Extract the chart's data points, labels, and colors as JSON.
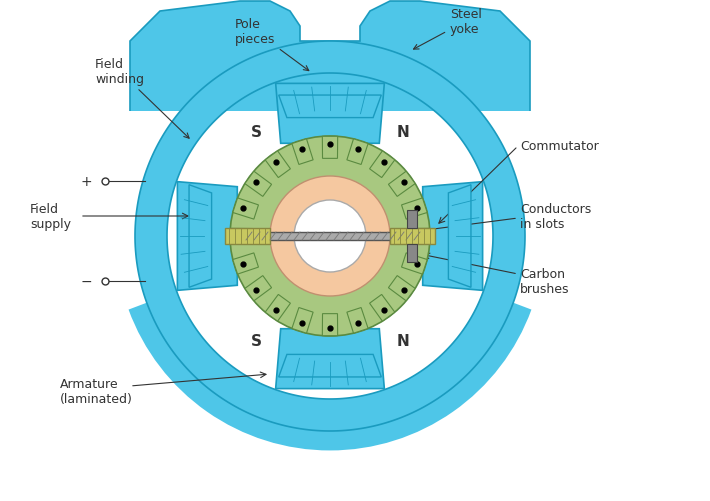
{
  "bg_color": "#ffffff",
  "steel_yoke_color": "#4ec6e8",
  "steel_yoke_dark": "#2ab0d8",
  "pole_color": "#4ec6e8",
  "field_winding_color": "#4ec6e8",
  "armature_outer_color": "#a8c880",
  "armature_inner_color": "#f5c8a0",
  "shaft_color": "#888888",
  "commutator_color": "#c8c860",
  "conductor_color": "#333333",
  "base_color": "#4ec6e8",
  "labels": {
    "pole_pieces": "Pole\npieces",
    "steel_yoke": "Steel\nyoke",
    "field_winding": "Field\nwinding",
    "commutator": "Commutator",
    "conductors": "Conductors\nin slots",
    "carbon_brushes": "Carbon\nbrushes",
    "field_supply": "Field\nsupply",
    "armature": "Armature\n(laminated)",
    "plus": "+",
    "minus": "−"
  }
}
